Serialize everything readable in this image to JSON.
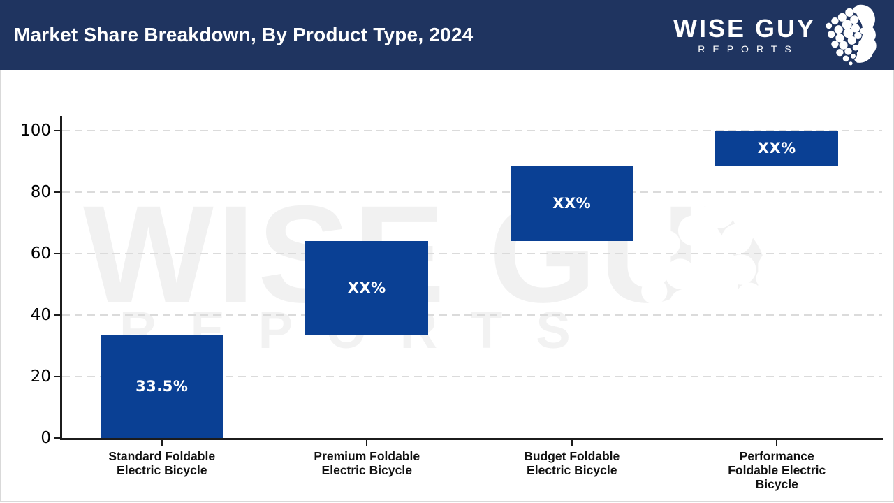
{
  "header": {
    "title": "Market Share Breakdown, By Product Type, 2024",
    "logo": {
      "line1": "WISE GUY",
      "line2": "REPORTS"
    }
  },
  "watermark": {
    "line1": "WISE GUY",
    "line2": "REPORTS"
  },
  "colors": {
    "header_bg": "#1f3460",
    "bar": "#0a4094",
    "bar_label": "#ffffff",
    "gridline": "#dbdbdb",
    "axis": "#1c1c1c",
    "watermark": "#f1f1f1"
  },
  "chart_data": {
    "type": "bar",
    "subtype": "waterfall",
    "title": "Market Share Breakdown, By Product Type, 2024",
    "categories": [
      "Standard Foldable Electric Bicycle",
      "Premium Foldable Electric Bicycle",
      "Budget Foldable Electric Bicycle",
      "Performance Foldable Electric Bicycle"
    ],
    "xtick_lines": [
      [
        "Standard Foldable",
        "Electric Bicycle"
      ],
      [
        "Premium Foldable",
        "Electric Bicycle"
      ],
      [
        "Budget Foldable",
        "Electric Bicycle"
      ],
      [
        "Performance",
        "Foldable Electric",
        "Bicycle"
      ]
    ],
    "segments": [
      {
        "category": "Standard Foldable Electric Bicycle",
        "start": 0,
        "end": 33.5,
        "label": "33.5%"
      },
      {
        "category": "Premium Foldable Electric Bicycle",
        "start": 33.5,
        "end": 64,
        "label": "XX%"
      },
      {
        "category": "Budget Foldable Electric Bicycle",
        "start": 64,
        "end": 88.5,
        "label": "XX%"
      },
      {
        "category": "Performance Foldable Electric Bicycle",
        "start": 88.5,
        "end": 100,
        "label": "XX%"
      }
    ],
    "ylim": [
      0,
      100
    ],
    "yticks": [
      0,
      20,
      40,
      60,
      80,
      100
    ],
    "grid": "horizontal-dashed",
    "legend": "none",
    "bar_color": "#0a4094",
    "value_label_color": "#ffffff"
  }
}
